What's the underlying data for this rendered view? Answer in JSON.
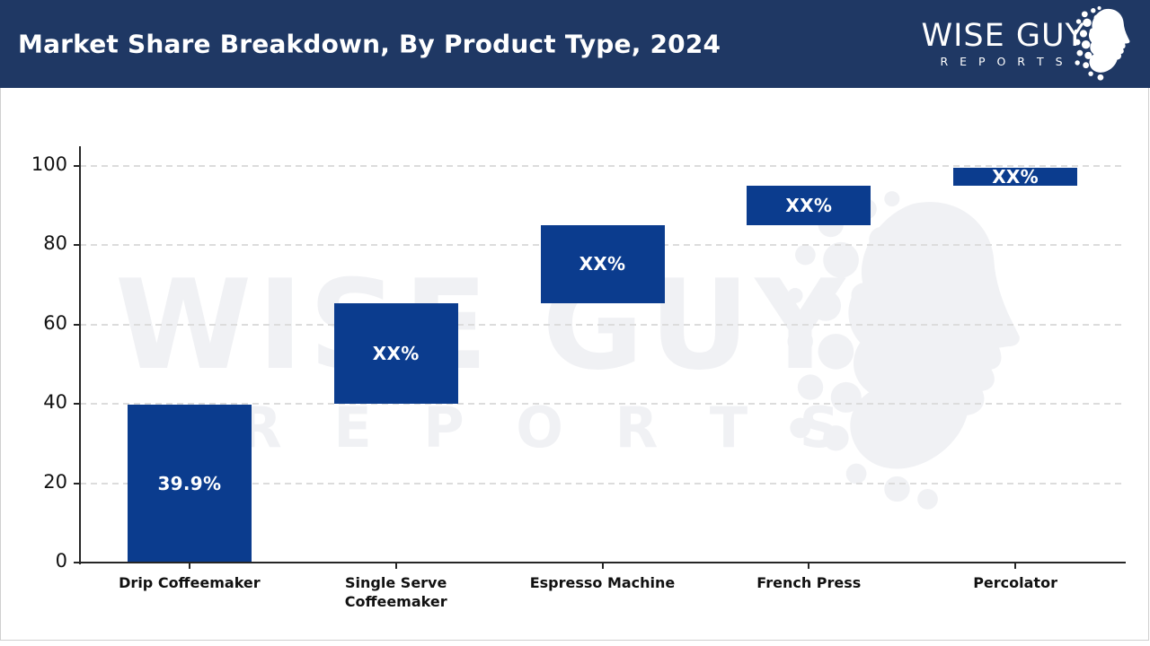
{
  "header": {
    "title": "Market Share Breakdown, By Product Type, 2024",
    "logo": {
      "line1": "WISE GUY",
      "line2": "R E P O R T S",
      "head_icon": "head-profile-dots-icon"
    }
  },
  "watermark": {
    "line1": "WISE GUY",
    "line2": "R E P O R T S",
    "head_icon": "head-profile-dots-icon"
  },
  "colors": {
    "header_bg": "#1f3864",
    "bar": "#0b3c8e",
    "bar_label": "#ffffff",
    "axis": "#262626",
    "grid": "#dcdcdc",
    "watermark": "#f0f1f4",
    "panel_border": "#cfcfcf",
    "title_text": "#ffffff"
  },
  "chart_data": {
    "type": "bar",
    "subtype": "waterfall-stacked-ascending",
    "title": "Market Share Breakdown, By Product Type, 2024",
    "xlabel": "",
    "ylabel": "",
    "ylim": [
      0,
      105
    ],
    "yticks": [
      0,
      20,
      40,
      60,
      80,
      100
    ],
    "grid": "horizontal-dashed",
    "legend": "none",
    "categories": [
      "Drip Coffeemaker",
      "Single Serve\nCoffeemaker",
      "Espresso Machine",
      "French Press",
      "Percolator"
    ],
    "segments": [
      {
        "category": "Drip Coffeemaker",
        "start": 0,
        "end": 39.9,
        "label": "39.9%"
      },
      {
        "category": "Single Serve Coffeemaker",
        "start": 40,
        "end": 65.5,
        "label": "XX%"
      },
      {
        "category": "Espresso Machine",
        "start": 65.5,
        "end": 85,
        "label": "XX%"
      },
      {
        "category": "French Press",
        "start": 85,
        "end": 95,
        "label": "XX%"
      },
      {
        "category": "Percolator",
        "start": 95,
        "end": 99.5,
        "label": "XX%"
      }
    ]
  }
}
